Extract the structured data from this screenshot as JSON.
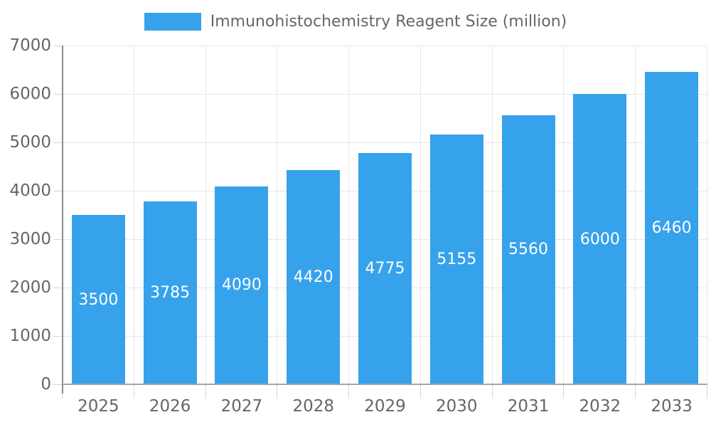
{
  "chart_data": {
    "type": "bar",
    "title": "",
    "legend_label": "Immunohistochemistry Reagent Size (million)",
    "legend_position": "top",
    "categories": [
      "2025",
      "2026",
      "2027",
      "2028",
      "2029",
      "2030",
      "2031",
      "2032",
      "2033"
    ],
    "values": [
      3500,
      3785,
      4090,
      4420,
      4775,
      5155,
      5560,
      6000,
      6460
    ],
    "xlabel": "",
    "ylabel": "",
    "ylim": [
      0,
      7000
    ],
    "yticks": [
      0,
      1000,
      2000,
      3000,
      4000,
      5000,
      6000,
      7000
    ],
    "grid": true,
    "bar_value_labels_visible": true,
    "colors": {
      "bar": "#36A2EB",
      "bar_label": "#FFFFFF",
      "axis_text": "#666666",
      "legend_text": "#666666",
      "gridline": "#E6E6E6",
      "tick": "#D6D6D6",
      "axis_line": "#8C8C8C",
      "baseline": "#A6A6A6",
      "background": "#FFFFFF"
    }
  }
}
